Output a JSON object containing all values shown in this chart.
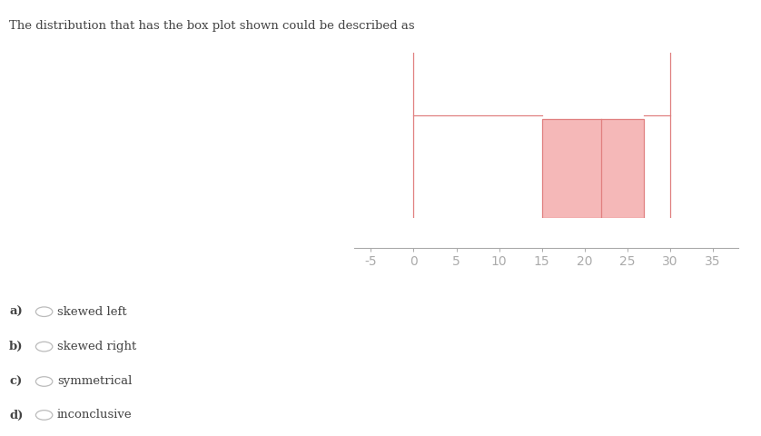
{
  "title": "The distribution that has the box plot shown could be described as",
  "title_fontsize": 9.5,
  "whisker_min": 0,
  "q1": 15,
  "median": 22,
  "q3": 27,
  "whisker_max": 30,
  "xlim": [
    -7,
    38
  ],
  "xticks": [
    -5,
    0,
    5,
    10,
    15,
    20,
    25,
    30,
    35
  ],
  "box_color": "#f5b8b8",
  "box_edge_color": "#e08080",
  "whisker_color": "#e08080",
  "options": [
    {
      "label": "a)",
      "text": "skewed left"
    },
    {
      "label": "b)",
      "text": "skewed right"
    },
    {
      "label": "c)",
      "text": "symmetrical"
    },
    {
      "label": "d)",
      "text": "inconclusive"
    }
  ],
  "axis_color": "#aaaaaa",
  "tick_color": "#aaaaaa",
  "text_color": "#444444",
  "bg_color": "#ffffff",
  "lw": 0.9
}
